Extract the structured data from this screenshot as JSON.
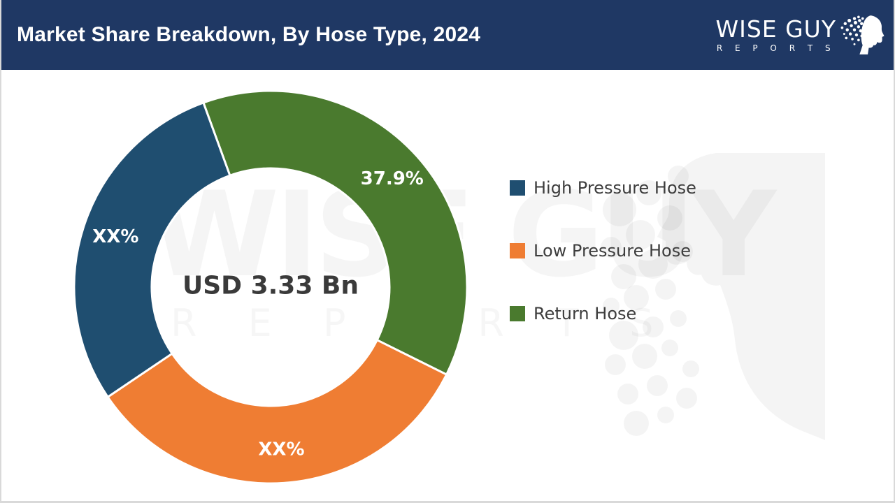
{
  "header": {
    "title": "Market Share Breakdown, By Hose Type, 2024",
    "logo_text": "WISE GUY",
    "logo_subtext": "R E P O R T S"
  },
  "watermark": {
    "text": "WISE GUY",
    "subtext": "R E P O R T S"
  },
  "chart_data": {
    "type": "pie",
    "subtype": "donut",
    "title": "Market Share Breakdown, By Hose Type, 2024",
    "center_label": "USD 3.33 Bn",
    "start_angle_deg": 110,
    "slices": [
      {
        "name": "Return Hose",
        "value": 37.9,
        "label": "37.9%",
        "color": "#4A7A2E"
      },
      {
        "name": "Low Pressure Hose",
        "value": 33.2,
        "label": "XX%",
        "color": "#EF7D33"
      },
      {
        "name": "High Pressure Hose",
        "value": 28.9,
        "label": "XX%",
        "color": "#1F4E70"
      }
    ],
    "legend": [
      {
        "label": "High Pressure Hose",
        "color": "#1F4E70"
      },
      {
        "label": "Low Pressure Hose",
        "color": "#EF7D33"
      },
      {
        "label": "Return Hose",
        "color": "#4A7A2E"
      }
    ],
    "legend_position": "right"
  },
  "colors": {
    "header_bg": "#1F3864",
    "center_text": "#3A3A3A",
    "legend_text": "#3D3D3D",
    "page_border": "#D9D9D9",
    "slice_gap": "#FFFFFF"
  }
}
